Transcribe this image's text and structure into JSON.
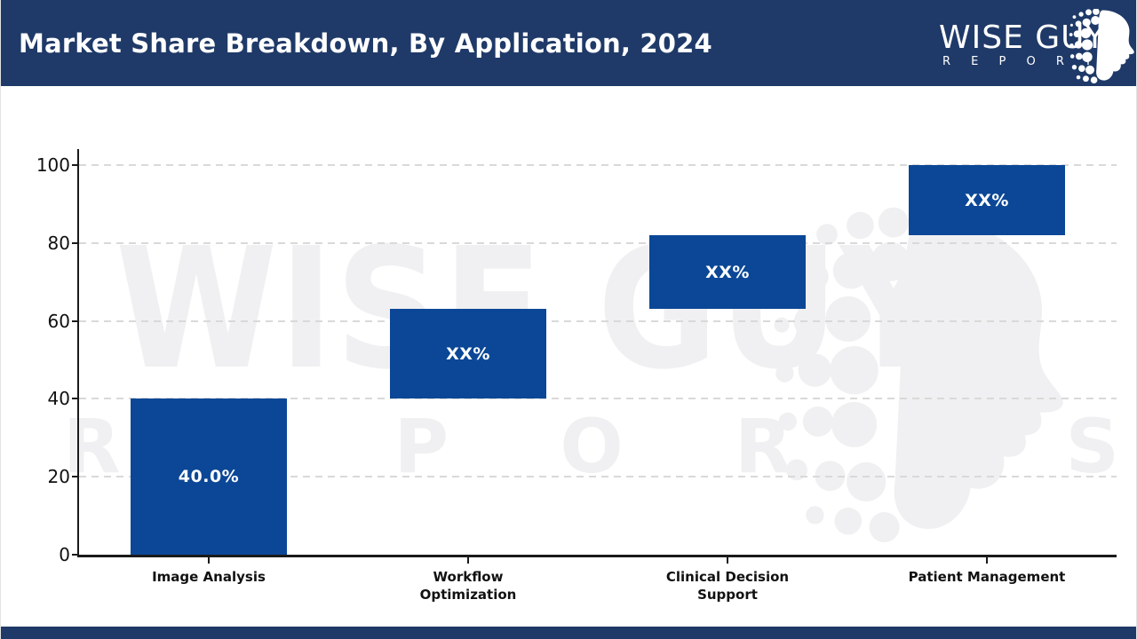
{
  "header": {
    "title": "Market Share Breakdown, By Application, 2024"
  },
  "brand": {
    "line1": "WISE GUY",
    "line2": "R E P O R T S"
  },
  "watermark": {
    "line1": "WISE GUY",
    "line2": "R E P O R T S"
  },
  "colors": {
    "header_bg": "#1f3a68",
    "footer_bg": "#1f3a68",
    "bar_fill": "#0b4796",
    "bar_label": "#ffffff",
    "grid": "#d9d9d9",
    "axis": "#1a1a1a",
    "tick_label": "#111111",
    "watermark": "#f0f0f2"
  },
  "chart_data": {
    "type": "bar",
    "subtype": "waterfall-floating-bars",
    "title": "Market Share Breakdown, By Application, 2024",
    "categories": [
      "Image Analysis",
      "Workflow Optimization",
      "Clinical Decision Support",
      "Patient Management"
    ],
    "category_lines": [
      [
        "Image Analysis"
      ],
      [
        "Workflow",
        "Optimization"
      ],
      [
        "Clinical Decision",
        "Support"
      ],
      [
        "Patient Management"
      ]
    ],
    "series": [
      {
        "name": "Image Analysis",
        "start": 0,
        "end": 40,
        "value": 40.0,
        "label": "40.0%"
      },
      {
        "name": "Workflow Optimization",
        "start": 40,
        "end": 63,
        "value": 23,
        "label": "XX%"
      },
      {
        "name": "Clinical Decision Support",
        "start": 63,
        "end": 82,
        "value": 19,
        "label": "XX%"
      },
      {
        "name": "Patient Management",
        "start": 82,
        "end": 100,
        "value": 18,
        "label": "XX%"
      }
    ],
    "xlabel": "",
    "ylabel": "",
    "ylim": [
      0,
      100
    ],
    "yticks": [
      0,
      20,
      40,
      60,
      80,
      100
    ],
    "grid": "horizontal-dashed",
    "legend": "none"
  }
}
